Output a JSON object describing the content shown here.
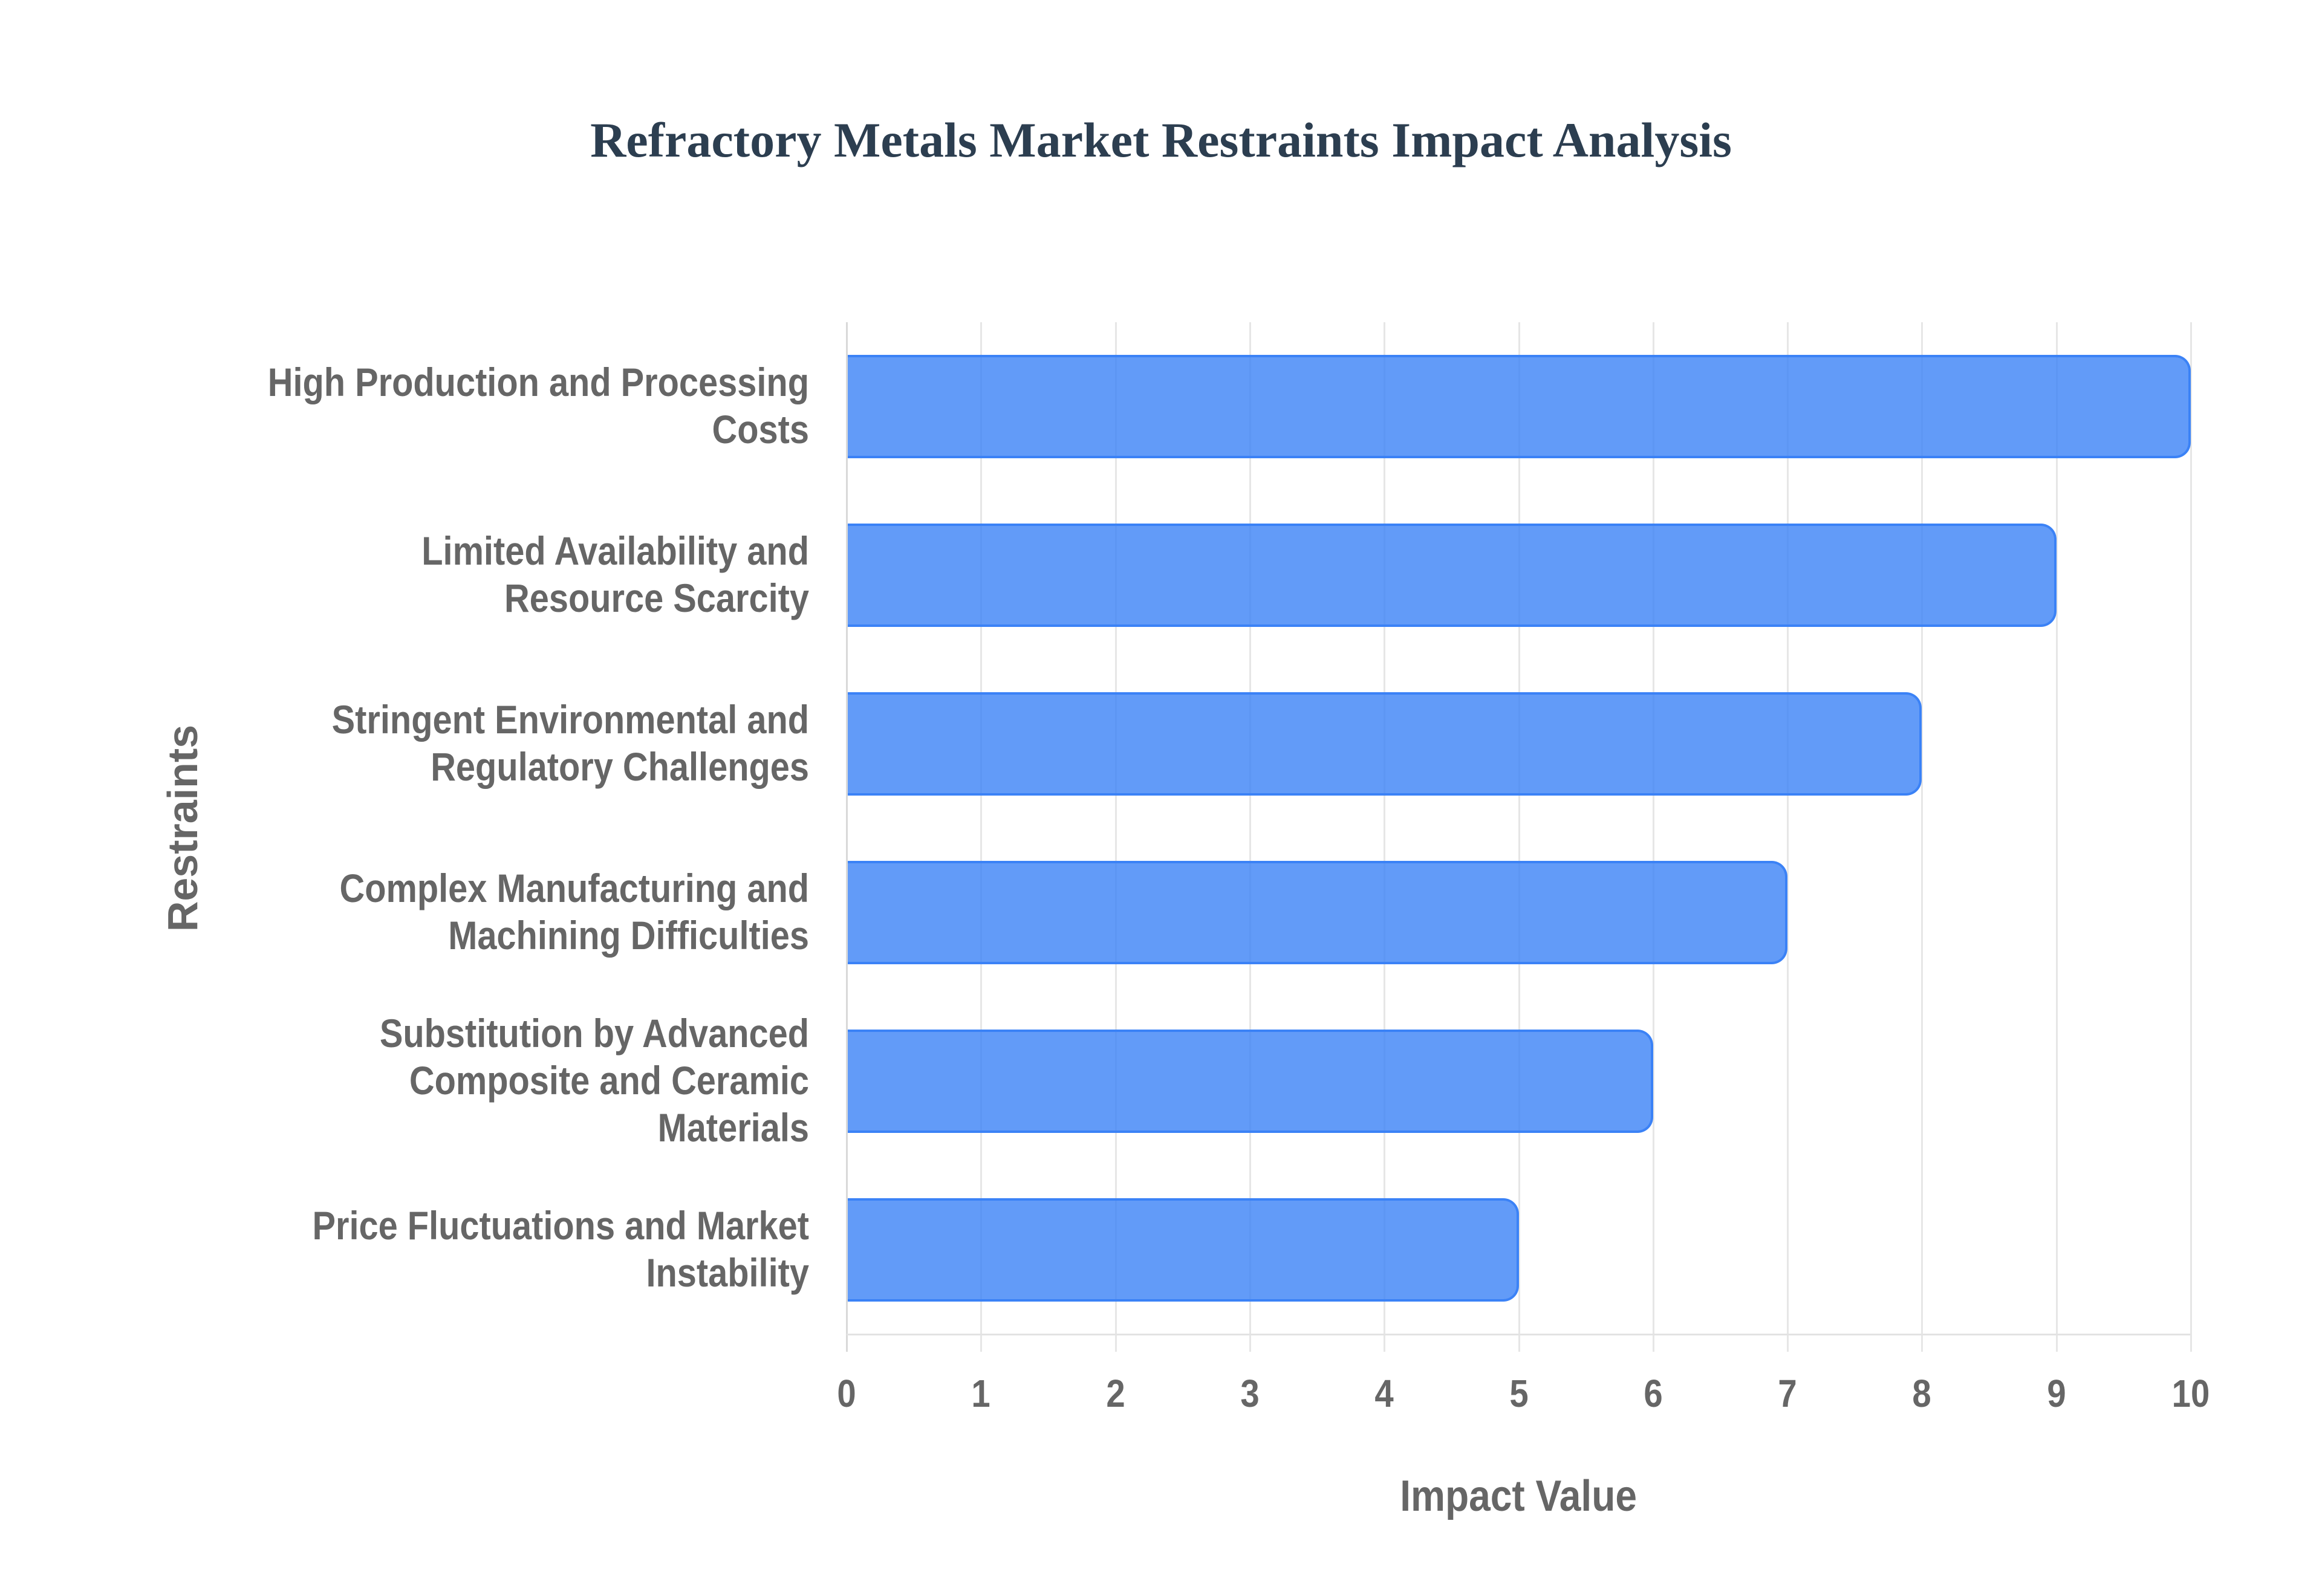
{
  "title": "Refractory Metals Market Restraints Impact Analysis",
  "colors": {
    "bar_fill": "rgba(59,130,246,0.8)",
    "bar_border": "#3b82f6",
    "title": "#2c3e50",
    "axis_text": "#666666",
    "grid": "#e6e6e6"
  },
  "axes": {
    "x_title": "Impact Value",
    "y_title": "Restraints",
    "x_ticks": [
      "0",
      "1",
      "2",
      "3",
      "4",
      "5",
      "6",
      "7",
      "8",
      "9",
      "10"
    ]
  },
  "categories": [
    {
      "label": "High Production and Processing Costs",
      "lines": [
        "High Production and Processing",
        "Costs"
      ],
      "value": 10
    },
    {
      "label": "Limited Availability and Resource Scarcity",
      "lines": [
        "Limited Availability and",
        "Resource Scarcity"
      ],
      "value": 9
    },
    {
      "label": "Stringent Environmental and Regulatory Challenges",
      "lines": [
        "Stringent Environmental and",
        "Regulatory Challenges"
      ],
      "value": 8
    },
    {
      "label": "Complex Manufacturing and Machining Difficulties",
      "lines": [
        "Complex Manufacturing and",
        "Machining Difficulties"
      ],
      "value": 7
    },
    {
      "label": "Substitution by Advanced Composite and Ceramic Materials",
      "lines": [
        "Substitution by Advanced",
        "Composite and Ceramic",
        "Materials"
      ],
      "value": 6
    },
    {
      "label": "Price Fluctuations and Market Instability",
      "lines": [
        "Price Fluctuations and Market",
        "Instability"
      ],
      "value": 5
    }
  ],
  "chart_data": {
    "type": "bar",
    "orientation": "horizontal",
    "title": "Refractory Metals Market Restraints Impact Analysis",
    "xlabel": "Impact Value",
    "ylabel": "Restraints",
    "categories": [
      "High Production and Processing Costs",
      "Limited Availability and Resource Scarcity",
      "Stringent Environmental and Regulatory Challenges",
      "Complex Manufacturing and Machining Difficulties",
      "Substitution by Advanced Composite and Ceramic Materials",
      "Price Fluctuations and Market Instability"
    ],
    "values": [
      10,
      9,
      8,
      7,
      6,
      5
    ],
    "xlim": [
      0,
      10
    ],
    "x_ticks": [
      0,
      1,
      2,
      3,
      4,
      5,
      6,
      7,
      8,
      9,
      10
    ],
    "grid": {
      "vertical": true,
      "horizontal": false
    },
    "legend": null
  }
}
